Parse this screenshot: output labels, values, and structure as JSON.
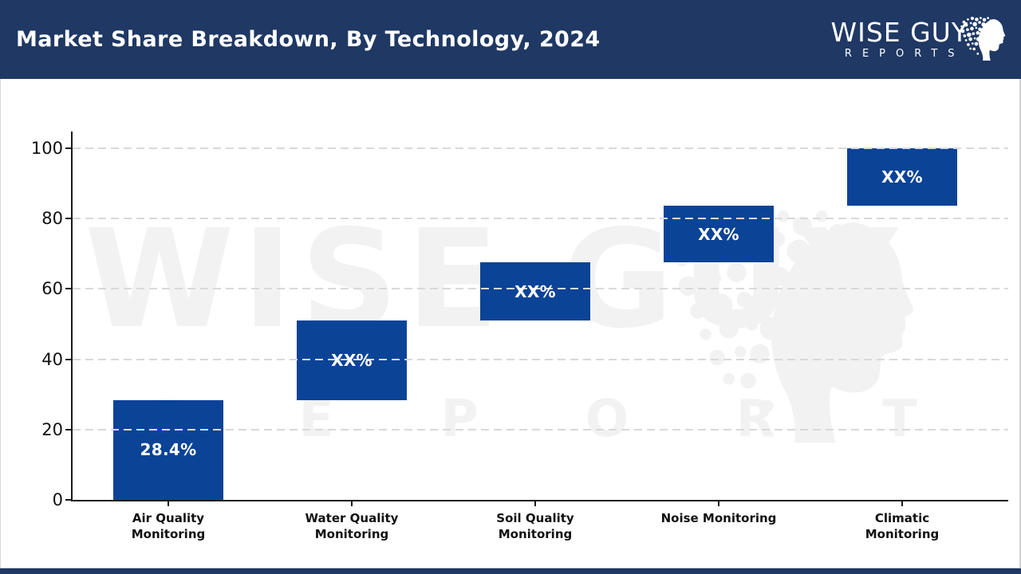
{
  "header": {
    "title": "Market Share Breakdown, By Technology, 2024",
    "logo": {
      "line1": "WISE GUY",
      "line2": "REPORTS"
    }
  },
  "watermark": {
    "line1": "WISE GUY",
    "line2": "R E P O R T S"
  },
  "colors": {
    "header_bg": "#1f3864",
    "footer_bg": "#1f3864",
    "bar": "#0b4397",
    "bar_label_text": "#ffffff",
    "gridline": "#d9d9d9",
    "axis": "#1a1a1a",
    "watermark": "#f2f2f2"
  },
  "chart_data": {
    "type": "bar",
    "subtype": "floating-waterfall",
    "title": "Market Share Breakdown, By Technology, 2024",
    "xlabel": "",
    "ylabel": "",
    "ylim": [
      0,
      100
    ],
    "yticks": [
      0,
      20,
      40,
      60,
      80,
      100
    ],
    "grid": "horizontal-dashed",
    "values_masked": true,
    "categories": [
      "Air Quality Monitoring",
      "Water Quality Monitoring",
      "Soil Quality Monitoring",
      "Noise Monitoring",
      "Climatic Monitoring"
    ],
    "bars": [
      {
        "category": "Air Quality Monitoring",
        "lines": [
          "Air Quality",
          "Monitoring"
        ],
        "start": 0,
        "end": 28.4,
        "value_label": "28.4%"
      },
      {
        "category": "Water Quality Monitoring",
        "lines": [
          "Water Quality",
          "Monitoring"
        ],
        "start": 28.4,
        "end": 51.0,
        "value_label": "XX%"
      },
      {
        "category": "Soil Quality Monitoring",
        "lines": [
          "Soil Quality",
          "Monitoring"
        ],
        "start": 51.0,
        "end": 67.5,
        "value_label": "XX%"
      },
      {
        "category": "Noise Monitoring",
        "lines": [
          "Noise Monitoring"
        ],
        "start": 67.5,
        "end": 83.6,
        "value_label": "XX%"
      },
      {
        "category": "Climatic Monitoring",
        "lines": [
          "Climatic",
          "Monitoring"
        ],
        "start": 83.6,
        "end": 100,
        "value_label": "XX%"
      }
    ]
  }
}
